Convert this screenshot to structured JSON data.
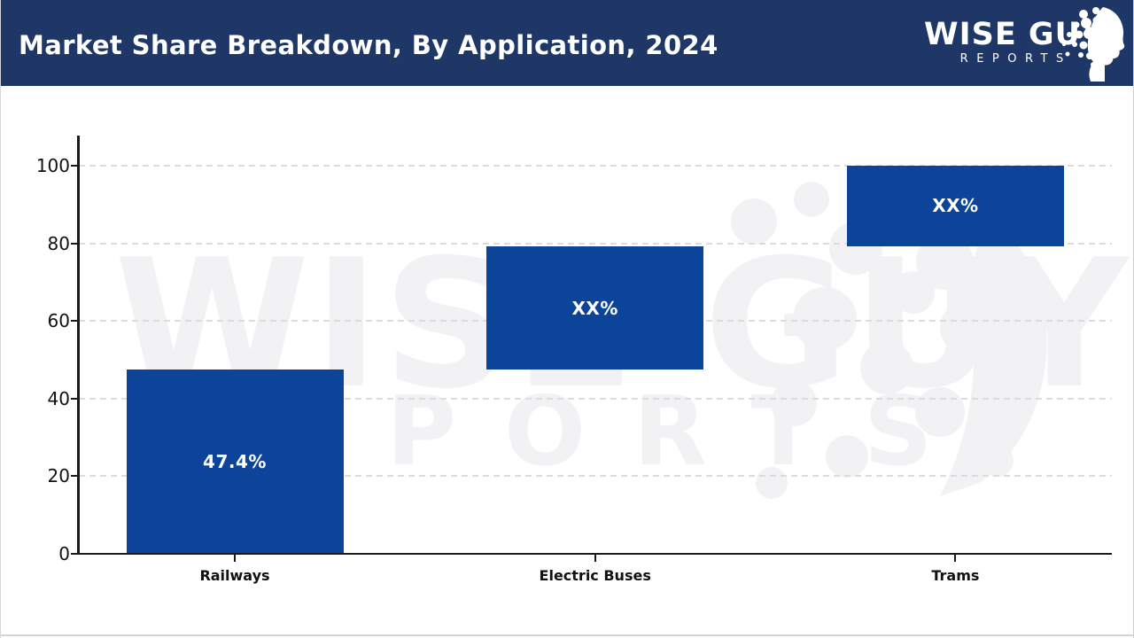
{
  "header": {
    "title": "Market Share Breakdown, By Application, 2024",
    "logo": {
      "line1": "WISE GUY",
      "line2": "REPORTS",
      "head_icon": "dotted-face-profile"
    }
  },
  "watermark": {
    "line1": "WISE GUY",
    "line2": "REPORTS"
  },
  "colors": {
    "header_bg": "#1f3766",
    "bar_blue": "#0b4499",
    "grid_gray": "#dcdcdc",
    "watermark_gray": "#f2f2f4"
  },
  "chart_data": {
    "type": "bar",
    "subtype": "waterfall",
    "title": "Market Share Breakdown, By Application, 2024",
    "xlabel": "",
    "ylabel": "",
    "categories": [
      "Railways",
      "Electric Buses",
      "Trams"
    ],
    "segments": [
      {
        "category": "Railways",
        "start": 0,
        "end": 47.4,
        "label": "47.4%"
      },
      {
        "category": "Electric Buses",
        "start": 47.4,
        "end": 79.3,
        "label": "XX%"
      },
      {
        "category": "Trams",
        "start": 79.3,
        "end": 100,
        "label": "XX%"
      }
    ],
    "yticks": [
      0,
      20,
      40,
      60,
      80,
      100
    ],
    "ylim": [
      0,
      107
    ],
    "grid": "horizontal-dashed",
    "legend": "none",
    "bar_color": "#0b4499"
  }
}
